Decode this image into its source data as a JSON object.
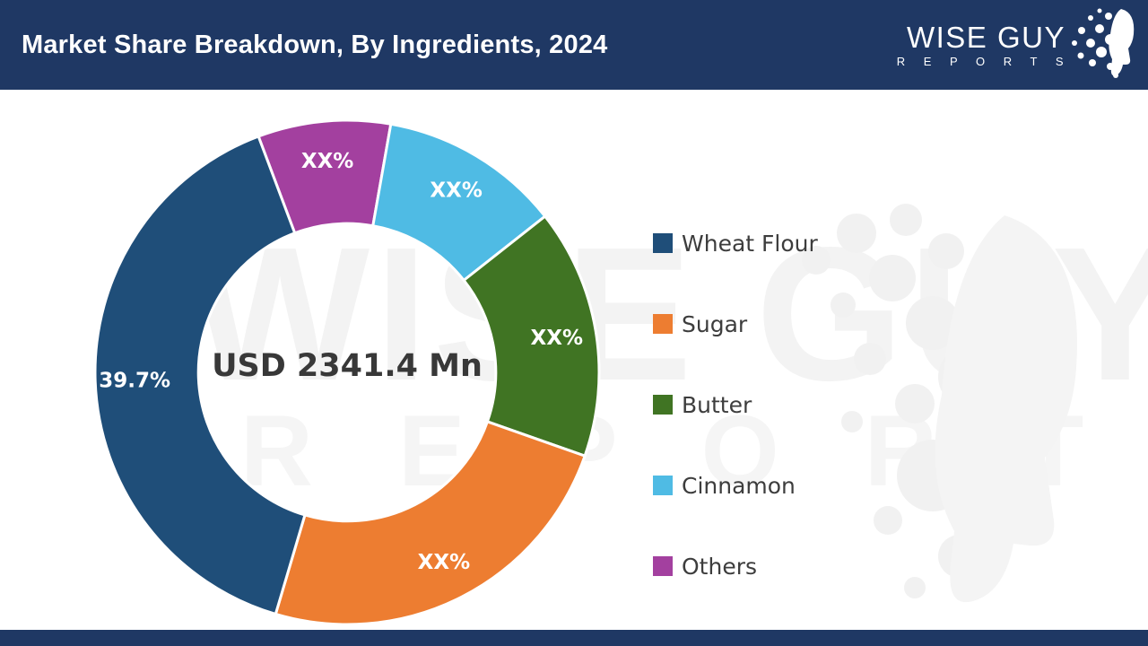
{
  "header": {
    "title": "Market Share Breakdown, By Ingredients, 2024",
    "bg_color": "#1f3864",
    "logo": {
      "line1": "WISE GUY",
      "line2": "R E P O R T S"
    }
  },
  "watermark": {
    "line1": "WISE GUY",
    "line2": "R E P O R T S"
  },
  "chart_data": {
    "type": "pie",
    "donut": true,
    "title": "Market Share Breakdown, By Ingredients, 2024",
    "center_label": "USD 2341.4 Mn",
    "start_angle_deg": -20.6,
    "direction": "clockwise-from-last-series",
    "inner_radius_ratio": 0.59,
    "legend_position": "right",
    "series": [
      {
        "name": "Wheat Flour",
        "value": 39.7,
        "label": "39.7%",
        "color": "#1f4e79"
      },
      {
        "name": "Sugar",
        "value": 24.2,
        "label": "XX%",
        "color": "#ed7d31"
      },
      {
        "name": "Butter",
        "value": 16.0,
        "label": "XX%",
        "color": "#407423"
      },
      {
        "name": "Cinnamon",
        "value": 11.6,
        "label": "XX%",
        "color": "#4fbbe4"
      },
      {
        "name": "Others",
        "value": 8.5,
        "label": "XX%",
        "color": "#a3409f"
      }
    ]
  },
  "footer": {
    "bg_color": "#1f3864"
  }
}
